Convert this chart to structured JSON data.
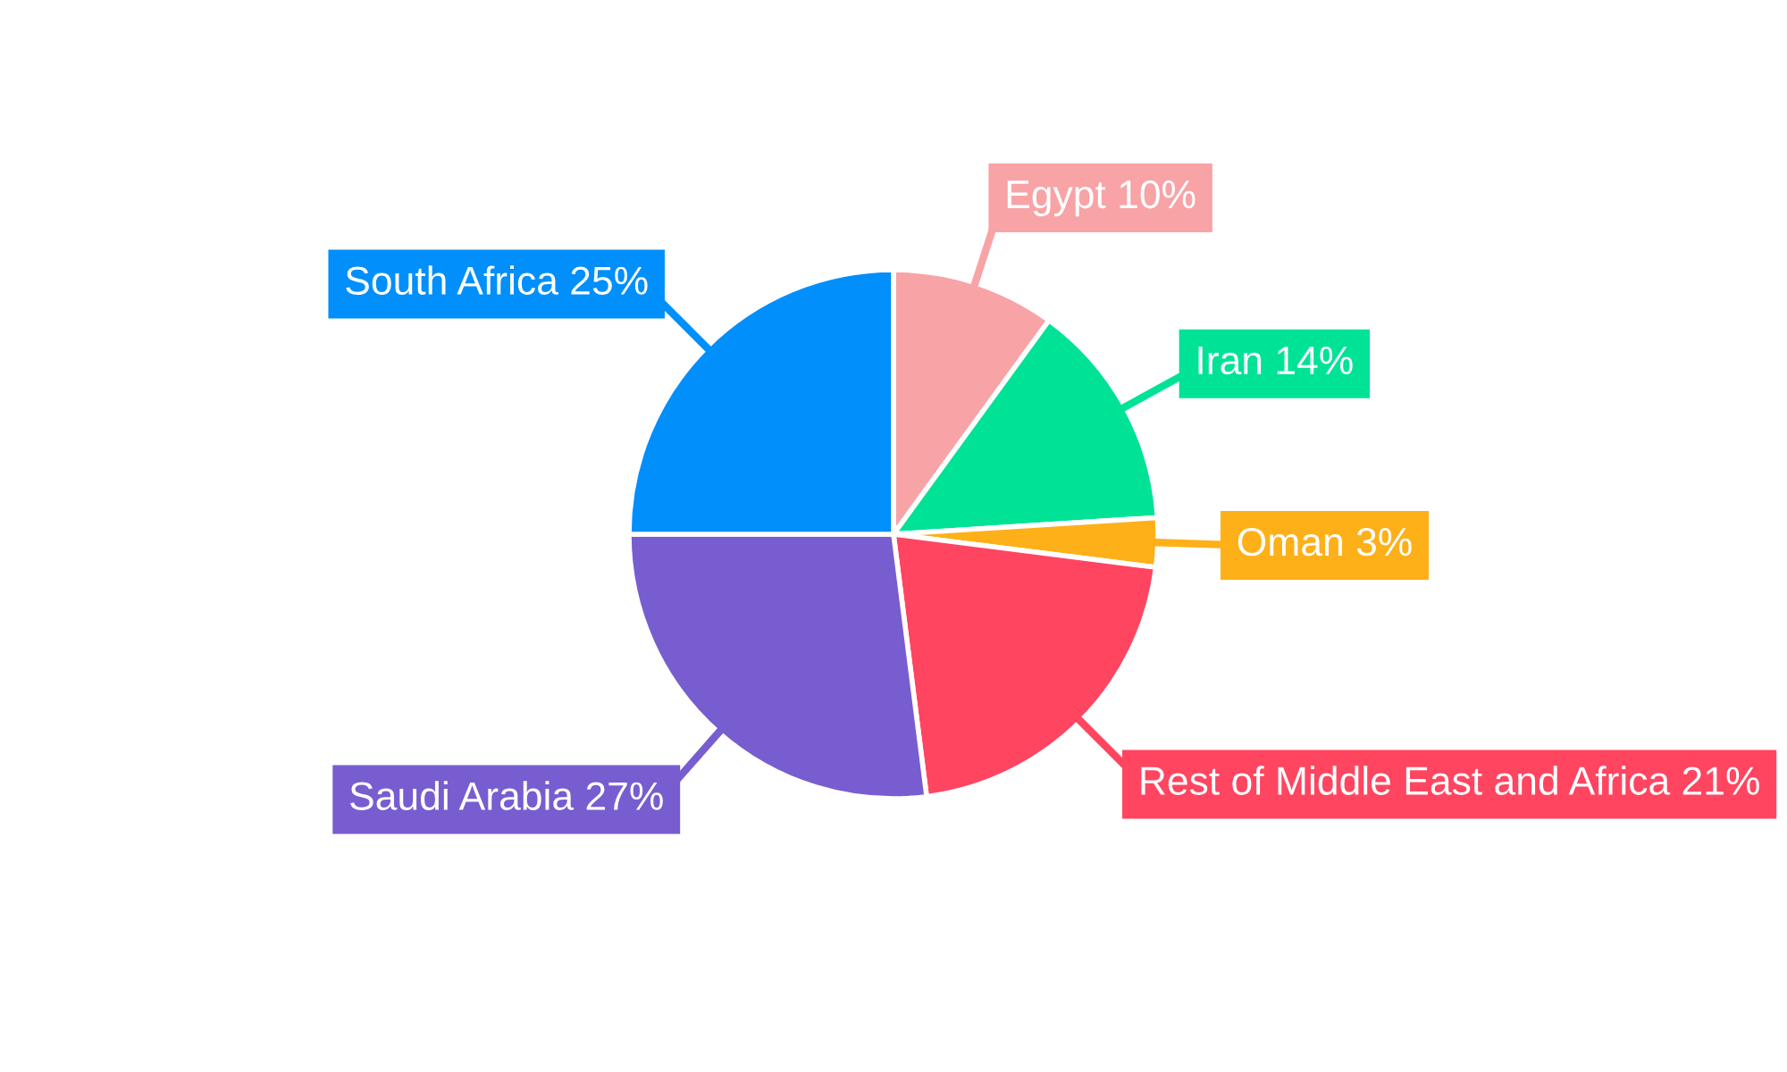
{
  "chart_data": {
    "type": "pie",
    "categories": [
      "Egypt",
      "Iran",
      "Oman",
      "Rest of Middle East and Africa",
      "Saudi Arabia",
      "South Africa"
    ],
    "values": [
      10,
      14,
      3,
      21,
      27,
      25
    ],
    "value_labels": [
      "10%",
      "14%",
      "3%",
      "21%",
      "27%",
      "25%"
    ],
    "colors": [
      "#f8a3a6",
      "#00e396",
      "#feb019",
      "#ff4560",
      "#775dd0",
      "#008ffb"
    ]
  }
}
